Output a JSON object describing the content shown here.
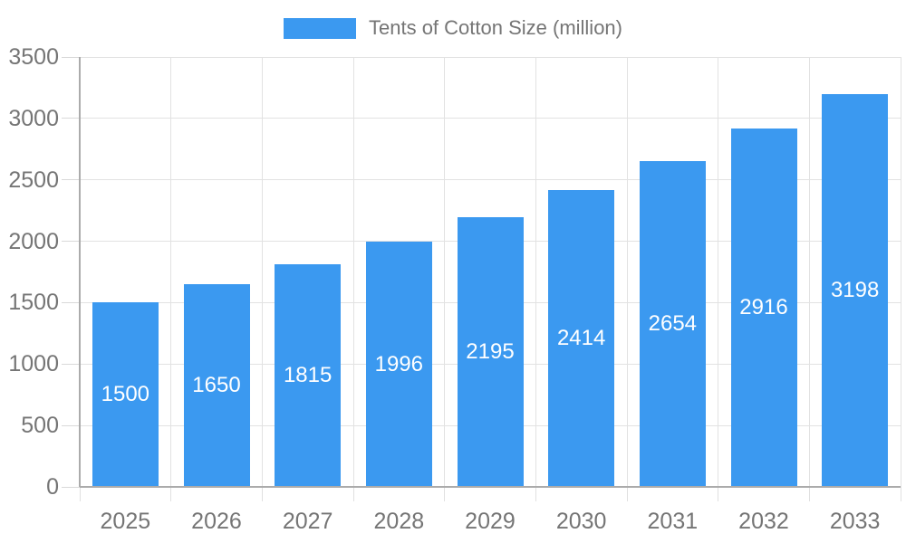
{
  "colors": {
    "bar": "#3B99F0",
    "axis_line": "#ABABAB",
    "grid_line": "#E2E2E2",
    "tick_line": "#DCDCDC",
    "axis_text": "#757575",
    "bar_label_text": "#FFFFFF",
    "background": "#FFFFFF"
  },
  "legend": {
    "swatch": "legend-color-swatch",
    "label": "Tents of Cotton Size (million)",
    "position": "top-center"
  },
  "chart_data": {
    "type": "bar",
    "title": "Tents of Cotton Size (million)",
    "categories": [
      "2025",
      "2026",
      "2027",
      "2028",
      "2029",
      "2030",
      "2031",
      "2032",
      "2033"
    ],
    "values": [
      1500,
      1650,
      1815,
      1996,
      2195,
      2414,
      2654,
      2916,
      3198
    ],
    "bar_labels": [
      "1500",
      "1650",
      "1815",
      "1996",
      "2195",
      "2414",
      "2654",
      "2916",
      "3198"
    ],
    "bar_labels_position": "inside-center",
    "xlabel": "",
    "ylabel": "",
    "ylim": [
      0,
      3500
    ],
    "ytick_interval": 500,
    "ytick_labels": [
      "0",
      "500",
      "1000",
      "1500",
      "2000",
      "2500",
      "3000",
      "3500"
    ],
    "grid": true,
    "legend_position": "top"
  }
}
